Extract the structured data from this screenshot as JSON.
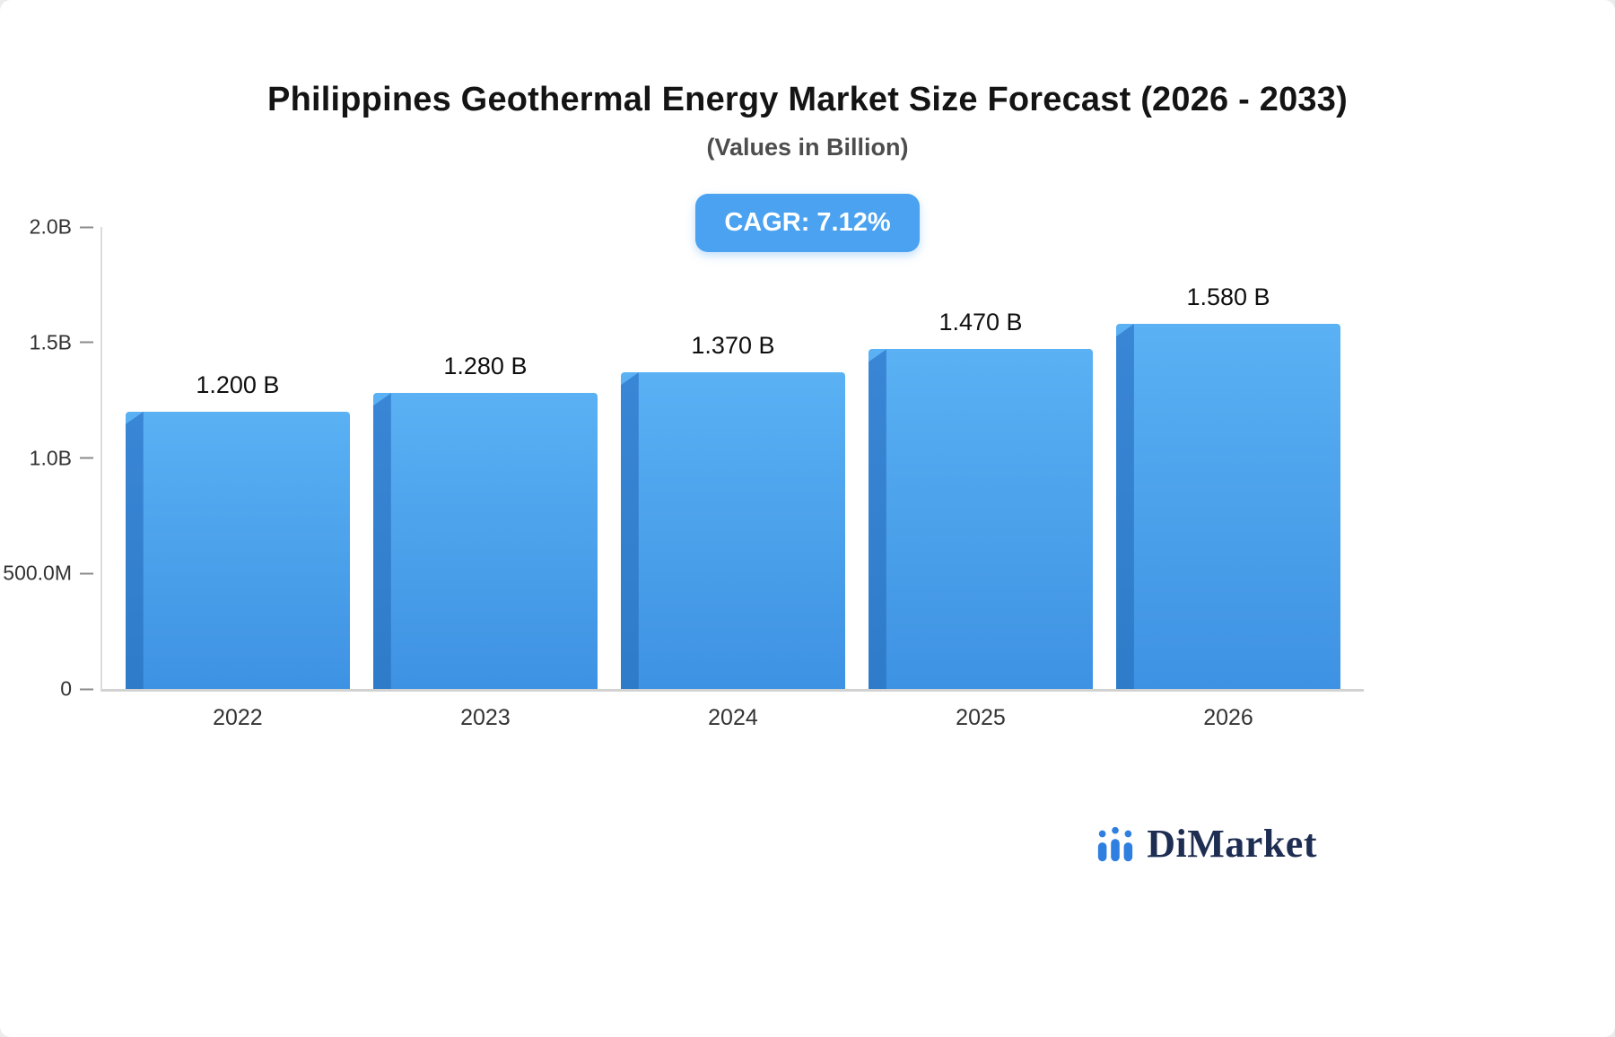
{
  "chart_data": {
    "type": "bar",
    "title": "Philippines Geothermal Energy Market Size Forecast (2026 - 2033)",
    "subtitle": "(Values in Billion)",
    "cagr_label": "CAGR: 7.12%",
    "categories": [
      "2022",
      "2023",
      "2024",
      "2025",
      "2026"
    ],
    "values": [
      1.2,
      1.28,
      1.37,
      1.47,
      1.58
    ],
    "value_labels": [
      "1.200 B",
      "1.280 B",
      "1.370 B",
      "1.470 B",
      "1.580 B"
    ],
    "ylabel_ticks": [
      "2.0B",
      "1.5B",
      "1.0B",
      "500.0M",
      "0"
    ],
    "ylim": [
      0,
      2.0
    ],
    "grid": false,
    "legend": "none"
  },
  "branding": {
    "logo_text": "DiMarket",
    "logo_icon": "bar-chart-icon"
  },
  "colors": {
    "bar_top": "#5ab1f3",
    "bar_bottom": "#3e92e3",
    "bar_edge": "#2e7cc9",
    "badge_bg": "#4aa2f0",
    "badge_text": "#ffffff",
    "title_text": "#141414",
    "subtitle_text": "#4d4d4d",
    "axis_text": "#333333",
    "logo_text": "#1e2d52",
    "logo_icon": "#2e7fe0"
  }
}
